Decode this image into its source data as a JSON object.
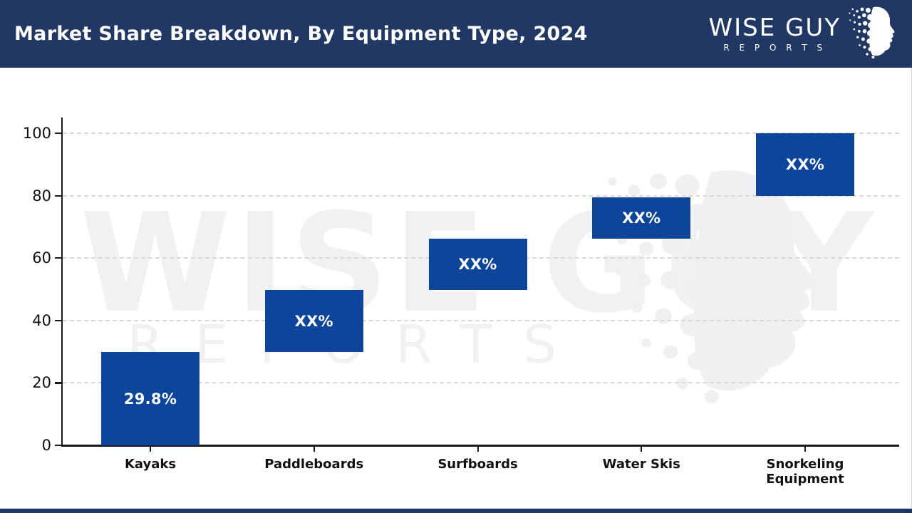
{
  "header": {
    "title": "Market Share Breakdown, By Equipment Type, 2024",
    "logo": {
      "line1": "WISE GUY",
      "line2": "R E P O R T S",
      "head_icon": "dotted-head-profile"
    }
  },
  "watermark": {
    "line1": "WISE GUY",
    "line2": "REPORTS",
    "head_icon": "dotted-head-profile"
  },
  "colors": {
    "header_bg": "#213864",
    "footer_bg": "#213864",
    "bar": "#0c459a",
    "grid": "#d9d9d9",
    "axis": "#1a1a1a",
    "bar_label": "#ffffff",
    "watermark": "#f1f1f4",
    "title_text": "#ffffff"
  },
  "chart_data": {
    "type": "bar",
    "subtype": "waterfall",
    "title": "Market Share Breakdown, By Equipment Type, 2024",
    "xlabel": "",
    "ylabel": "",
    "categories": [
      "Kayaks",
      "Paddleboards",
      "Surfboards",
      "Water Skis",
      "Snorkeling Equipment"
    ],
    "bars": [
      {
        "category": "Kayaks",
        "start": 0,
        "end": 29.8,
        "label": "29.8%"
      },
      {
        "category": "Paddleboards",
        "start": 29.8,
        "end": 49.8,
        "label": "XX%"
      },
      {
        "category": "Surfboards",
        "start": 49.8,
        "end": 66.2,
        "label": "XX%"
      },
      {
        "category": "Water Skis",
        "start": 66.3,
        "end": 79.4,
        "label": "XX%"
      },
      {
        "category": "Snorkeling Equipment",
        "start": 80,
        "end": 100,
        "label": "XX%"
      }
    ],
    "ylim": [
      0,
      100
    ],
    "yticks": [
      0,
      20,
      40,
      60,
      80,
      100
    ],
    "grid": "horizontal-dashed",
    "legend": null
  }
}
